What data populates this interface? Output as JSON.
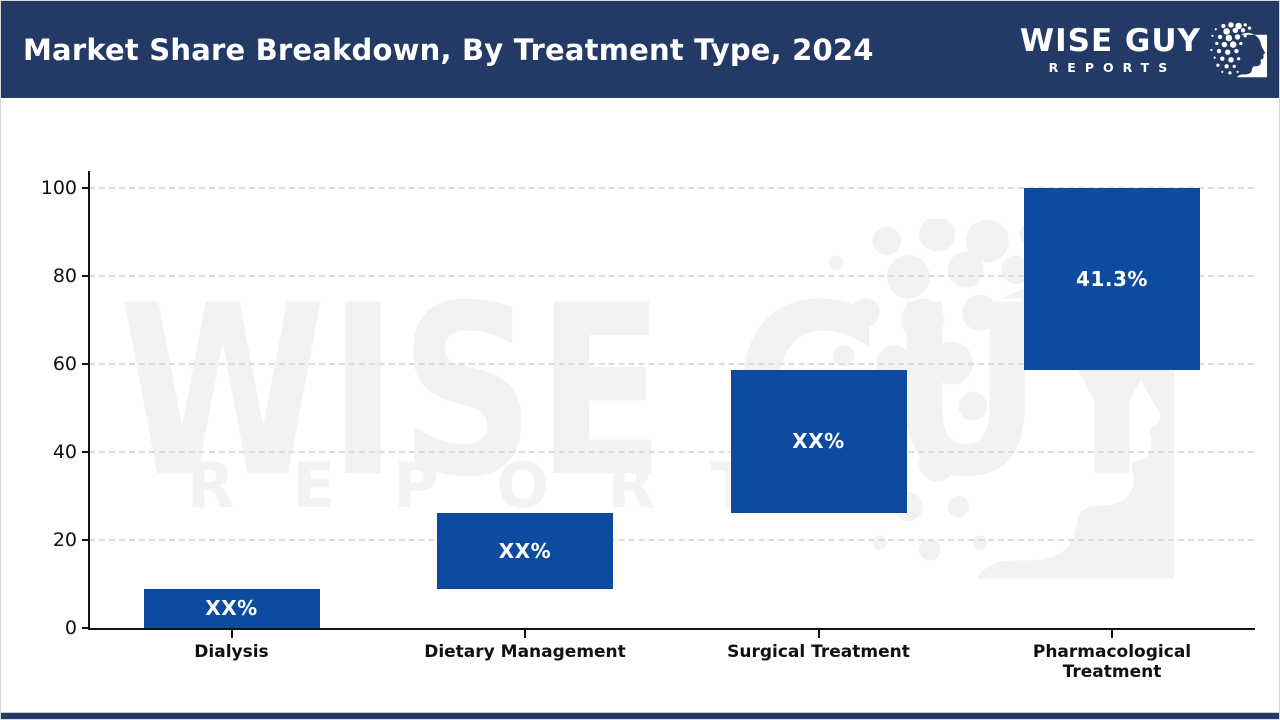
{
  "header": {
    "title": "Market Share Breakdown, By Treatment Type, 2024",
    "logo": {
      "name": "WISE GUY",
      "sub": "REPORTS"
    }
  },
  "watermark": {
    "name": "WISE GUY",
    "sub": "REPORTS"
  },
  "colors": {
    "header_bg": "#243A66",
    "footer_bg": "#243A66",
    "bar": "#0C4BA0",
    "grid": "#dcdcdc",
    "axis": "#111111",
    "watermark": "#f2f2f2"
  },
  "chart_data": {
    "type": "bar",
    "subtype": "floating-waterfall",
    "title": "Market Share Breakdown, By Treatment Type, 2024",
    "categories": [
      "Dialysis",
      "Dietary Management",
      "Surgical Treatment",
      "Pharmacological Treatment"
    ],
    "bars": [
      {
        "category": "Dialysis",
        "start": 0,
        "end": 8.9,
        "label": "XX%"
      },
      {
        "category": "Dietary Management",
        "start": 8.9,
        "end": 26.1,
        "label": "XX%"
      },
      {
        "category": "Surgical Treatment",
        "start": 26.1,
        "end": 58.7,
        "label": "XX%"
      },
      {
        "category": "Pharmacological Treatment",
        "start": 58.7,
        "end": 100,
        "label": "41.3%"
      }
    ],
    "yticks": [
      0,
      20,
      40,
      60,
      80,
      100
    ],
    "ylim": [
      0,
      104
    ],
    "xlabel": "",
    "ylabel": "",
    "grid": "horizontal-dashed",
    "legend": "none",
    "bar_color": "#0C4BA0"
  }
}
